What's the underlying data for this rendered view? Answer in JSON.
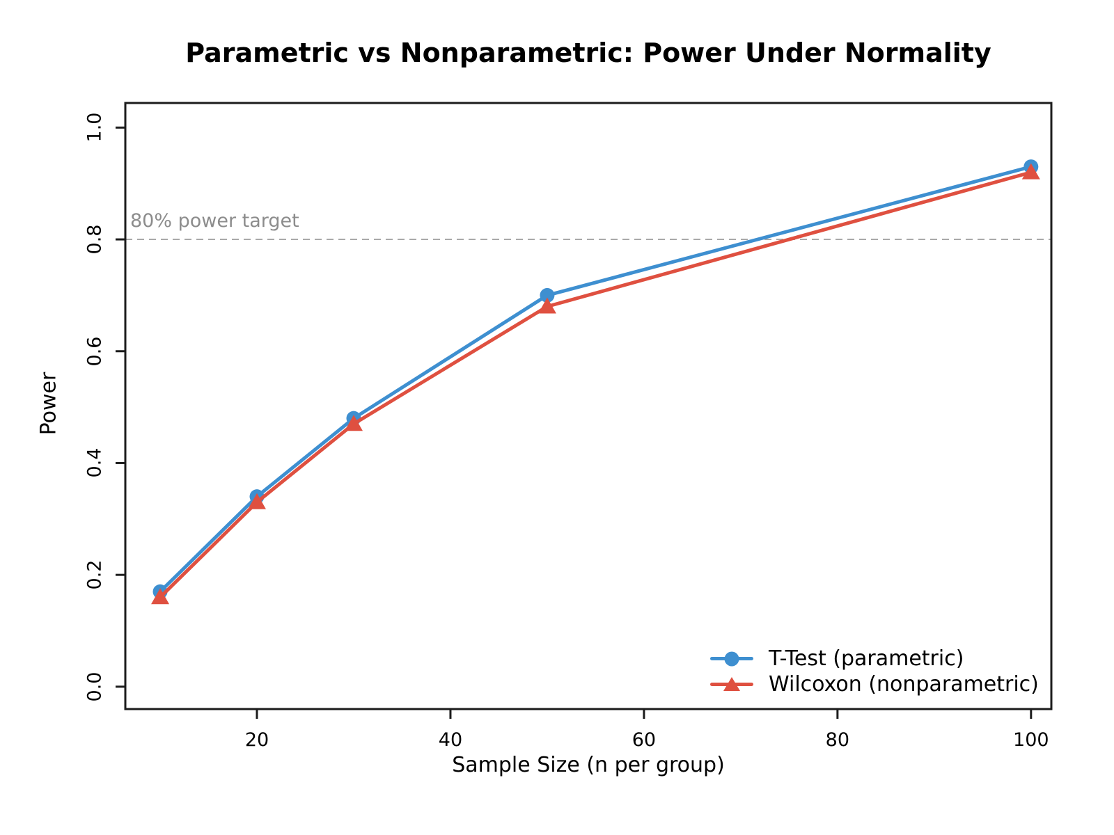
{
  "title": "Parametric vs Nonparametric: Power Under Normality",
  "axes": {
    "xlabel": "Sample Size (n per group)",
    "ylabel": "Power"
  },
  "annotation": {
    "label": "80% power target"
  },
  "legend": {
    "position": "bottomright",
    "items": [
      {
        "label": "T-Test (parametric)",
        "color": "#3E8FD0",
        "marker": "circle"
      },
      {
        "label": "Wilcoxon (nonparametric)",
        "color": "#DF5040",
        "marker": "triangle"
      }
    ]
  },
  "colors": {
    "axis": "#1c1c1c",
    "text": "#000000",
    "muted_text": "#8c8c8c",
    "dashed_line": "#a9a9a9",
    "blue": "#3E8FD0",
    "red": "#DF5040",
    "background": "#ffffff"
  },
  "chart_data": {
    "type": "line",
    "title": "Parametric vs Nonparametric: Power Under Normality",
    "xlabel": "Sample Size (n per group)",
    "ylabel": "Power",
    "x": [
      10,
      20,
      30,
      50,
      100
    ],
    "series": [
      {
        "name": "T-Test (parametric)",
        "marker": "circle",
        "color": "#3E8FD0",
        "values": [
          0.17,
          0.34,
          0.48,
          0.7,
          0.93
        ]
      },
      {
        "name": "Wilcoxon (nonparametric)",
        "marker": "triangle",
        "color": "#DF5040",
        "values": [
          0.16,
          0.33,
          0.47,
          0.68,
          0.92
        ]
      }
    ],
    "xticks": [
      20,
      40,
      60,
      80,
      100
    ],
    "xtick_labels": [
      "20",
      "40",
      "60",
      "80",
      "100"
    ],
    "yticks": [
      0.0,
      0.2,
      0.4,
      0.6,
      0.8,
      1.0
    ],
    "ytick_labels": [
      "0.0",
      "0.2",
      "0.4",
      "0.6",
      "0.8",
      "1.0"
    ],
    "xlim": [
      6.4,
      102.1
    ],
    "ylim": [
      -0.04,
      1.044
    ],
    "target_line": {
      "y": 0.8,
      "label": "80% power target",
      "style": "dashed",
      "color": "#a9a9a9"
    },
    "legend_position": "bottomright",
    "grid": false,
    "line_width": 5
  }
}
